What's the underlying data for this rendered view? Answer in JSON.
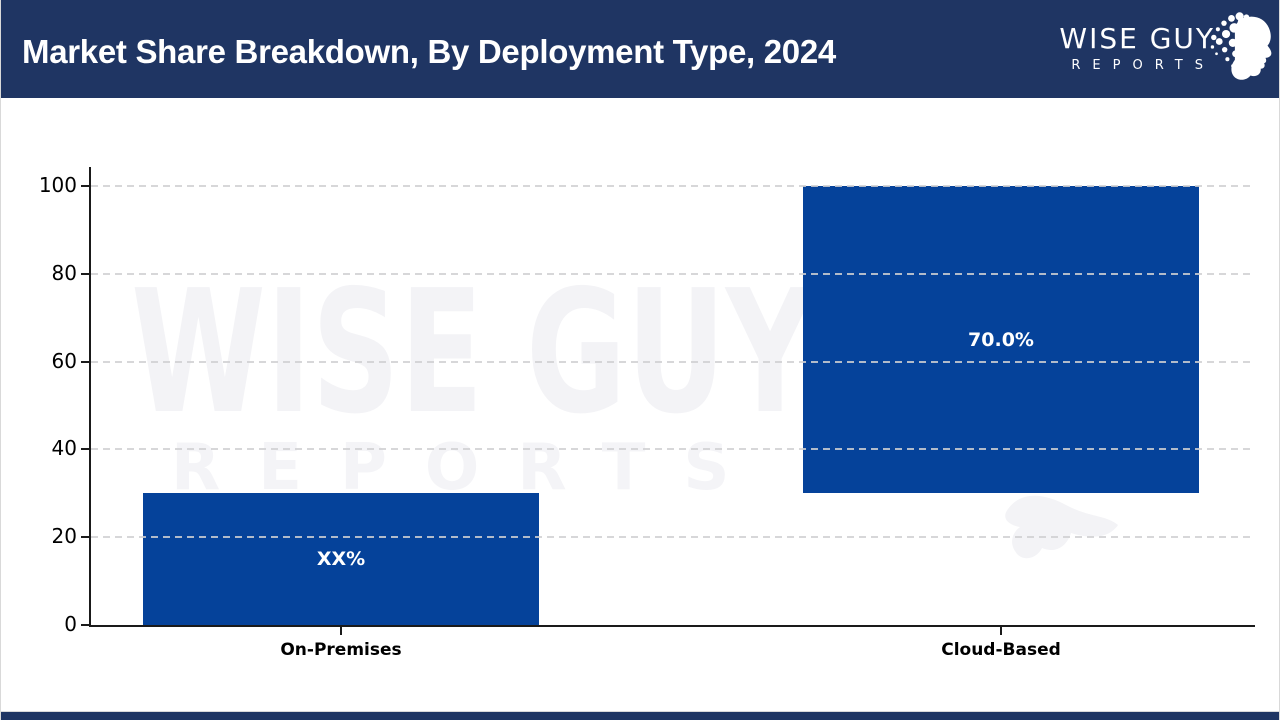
{
  "header": {
    "title": "Market Share Breakdown, By Deployment Type, 2024",
    "bg_color": "#1f3563",
    "logo": {
      "line1": "WISE GUY",
      "line2": "REPORTS"
    }
  },
  "watermark": {
    "line1": "WISE GUY",
    "line2": "REPORTS"
  },
  "footer": {
    "bg_color": "#1f3563"
  },
  "chart_data": {
    "type": "bar",
    "title": "Market Share Breakdown, By Deployment Type, 2024",
    "xlabel": "",
    "ylabel": "",
    "categories": [
      "On-Premises",
      "Cloud-Based"
    ],
    "values": [
      30,
      70
    ],
    "value_labels": [
      "XX%",
      "70.0%"
    ],
    "bars": [
      {
        "category": "On-Premises",
        "from": 0,
        "to": 30,
        "label": "XX%"
      },
      {
        "category": "Cloud-Based",
        "from": 30,
        "to": 100,
        "label": "70.0%"
      }
    ],
    "bar_style": "floating-stacked: second bar starts where first ends (waterfall)",
    "yticks": [
      0,
      20,
      40,
      60,
      80,
      100
    ],
    "ylim": [
      0,
      105
    ],
    "grid": "horizontal dashed, drawn over bars",
    "legend": "none",
    "colors": {
      "bar": "#05429a",
      "grid": "#d9d9d9",
      "axis": "#1a1a1a",
      "bar_label_text": "#ffffff",
      "header_bg": "#1f3563",
      "watermark": "#f3f3f6"
    }
  }
}
